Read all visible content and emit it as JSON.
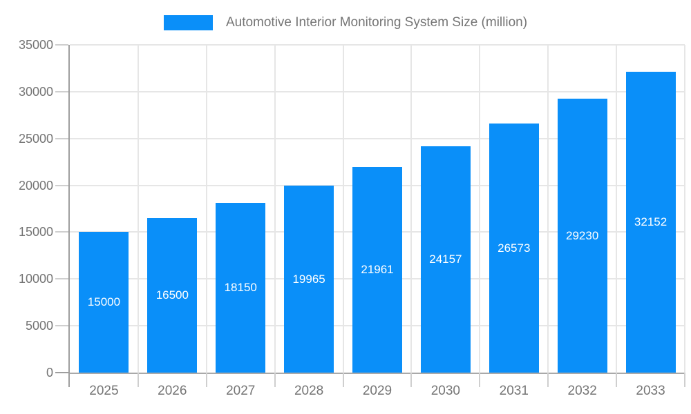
{
  "legend": {
    "label": "Automotive Interior Monitoring System Size (million)"
  },
  "chart_data": {
    "type": "bar",
    "title": "Automotive Interior Monitoring System Size (million)",
    "categories": [
      "2025",
      "2026",
      "2027",
      "2028",
      "2029",
      "2030",
      "2031",
      "2032",
      "2033"
    ],
    "values": [
      15000,
      16500,
      18150,
      19965,
      21961,
      24157,
      26573,
      29230,
      32152
    ],
    "value_labels": [
      "15000",
      "16500",
      "18150",
      "19965",
      "21961",
      "24157",
      "26573",
      "29230",
      "32152"
    ],
    "xlabel": "",
    "ylabel": "",
    "ylim": [
      0,
      35000
    ],
    "ytick_interval": 5000,
    "yticks": [
      "0",
      "5000",
      "10000",
      "15000",
      "20000",
      "25000",
      "30000",
      "35000"
    ],
    "grid": true,
    "legend_position": "top-center",
    "value_label_position": "inside-center"
  },
  "colors": {
    "bar": "#0A8FF9",
    "text": "#757575",
    "value_label_text": "#ffffff",
    "axis_line": "#9e9e9e",
    "grid_line": "#e6e6e6",
    "tick": "#cfcfcf",
    "background": "#ffffff"
  }
}
